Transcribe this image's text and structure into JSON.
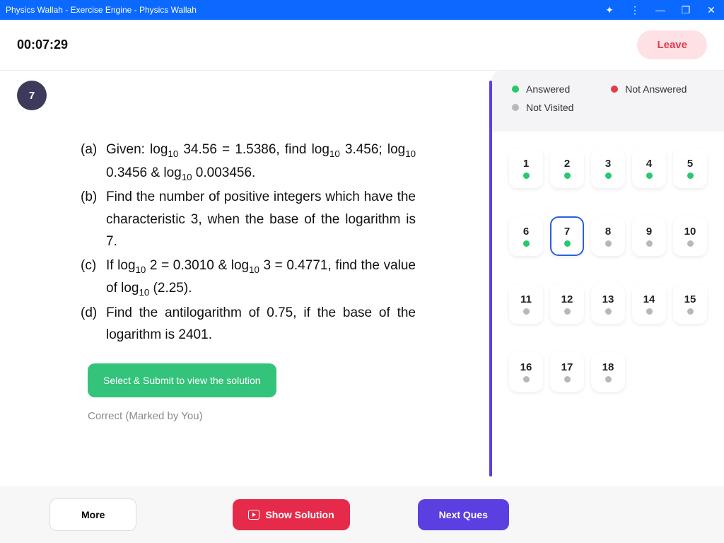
{
  "window": {
    "title": "Physics Wallah - Exercise Engine - Physics Wallah"
  },
  "colors": {
    "titlebar": "#0b69ff",
    "accent": "#5b3fe0",
    "answered": "#29c76f",
    "not_answered": "#e63a4a",
    "not_visited": "#b8b8b8",
    "submit": "#33c37a",
    "showsol": "#e62a4a",
    "qbadge": "#3e3a5b",
    "leave_bg": "#fde1e4",
    "leave_fg": "#e63a4a"
  },
  "topbar": {
    "timer": "00:07:29",
    "leave": "Leave"
  },
  "question": {
    "number": "7",
    "parts": [
      {
        "label": "(a)",
        "text": "Given: log₁₀ 34.56 = 1.5386, find log₁₀ 3.456; log₁₀ 0.3456 & log₁₀ 0.003456."
      },
      {
        "label": "(b)",
        "text": "Find the number of positive integers which have the characteristic 3, when the base of the logarithm is 7."
      },
      {
        "label": "(c)",
        "text": "If log₁₀ 2 = 0.3010 & log₁₀ 3 = 0.4771, find the value of log₁₀ (2.25)."
      },
      {
        "label": "(d)",
        "text": "Find the antilogarithm of 0.75, if the base of the logarithm is 2401."
      }
    ],
    "submit_label": "Select & Submit to view the solution",
    "correct_label": "Correct (Marked by You)"
  },
  "legend": {
    "answered": "Answered",
    "not_answered": "Not Answered",
    "not_visited": "Not Visited"
  },
  "nav": {
    "total": 18,
    "current": 7,
    "items": [
      {
        "n": "1",
        "s": "answered"
      },
      {
        "n": "2",
        "s": "answered"
      },
      {
        "n": "3",
        "s": "answered"
      },
      {
        "n": "4",
        "s": "answered"
      },
      {
        "n": "5",
        "s": "answered"
      },
      {
        "n": "6",
        "s": "answered"
      },
      {
        "n": "7",
        "s": "answered"
      },
      {
        "n": "8",
        "s": "not_visited"
      },
      {
        "n": "9",
        "s": "not_visited"
      },
      {
        "n": "10",
        "s": "not_visited"
      },
      {
        "n": "11",
        "s": "not_visited"
      },
      {
        "n": "12",
        "s": "not_visited"
      },
      {
        "n": "13",
        "s": "not_visited"
      },
      {
        "n": "14",
        "s": "not_visited"
      },
      {
        "n": "15",
        "s": "not_visited"
      },
      {
        "n": "16",
        "s": "not_visited"
      },
      {
        "n": "17",
        "s": "not_visited"
      },
      {
        "n": "18",
        "s": "not_visited"
      }
    ]
  },
  "footer": {
    "more": "More",
    "show_solution": "Show Solution",
    "next": "Next Ques"
  }
}
